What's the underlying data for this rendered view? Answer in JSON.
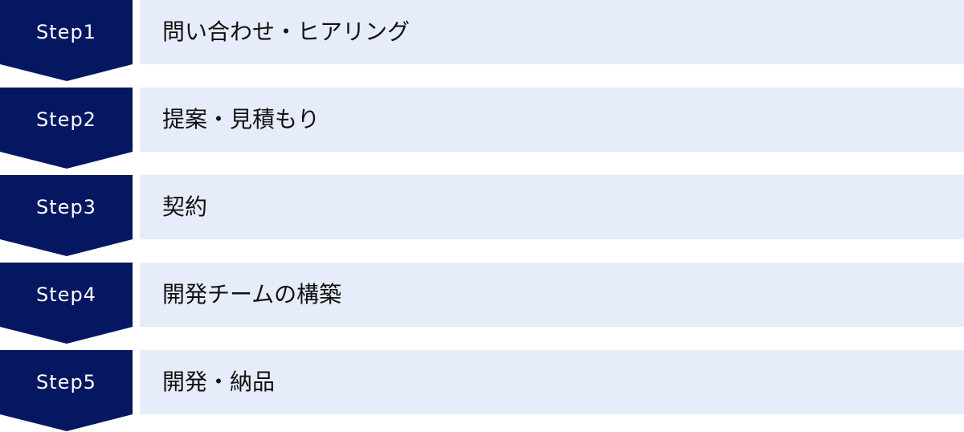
{
  "colors": {
    "badge": "#061762",
    "box": "#e6ecf9",
    "badge_text": "#ffffff"
  },
  "steps": [
    {
      "label": "Step1",
      "title": "問い合わせ・ヒアリング"
    },
    {
      "label": "Step2",
      "title": "提案・見積もり"
    },
    {
      "label": "Step3",
      "title": "契約"
    },
    {
      "label": "Step4",
      "title": "開発チームの構築"
    },
    {
      "label": "Step5",
      "title": "開発・納品"
    }
  ]
}
